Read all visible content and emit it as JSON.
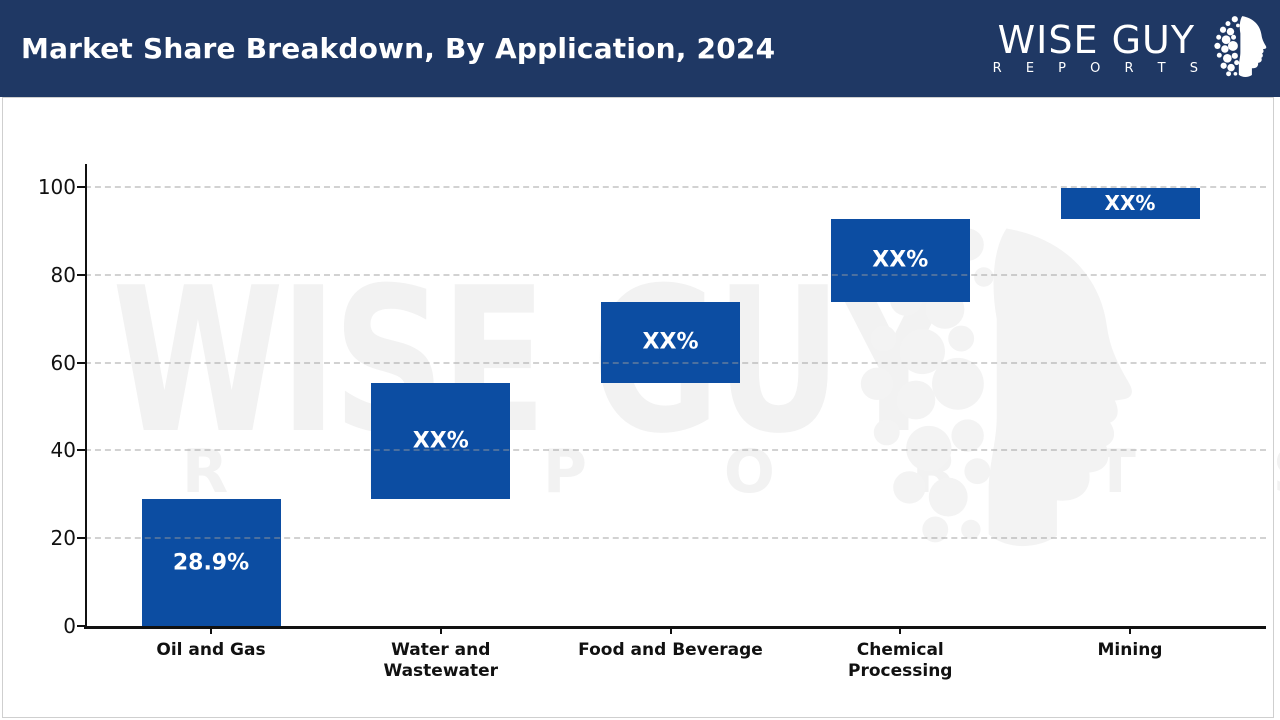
{
  "header": {
    "title": "Market Share Breakdown, By Application, 2024",
    "bg_color": "#1f3864",
    "logo": {
      "name": "WISE GUY",
      "tagline": "R E P O R T S",
      "icon": "dotted-head-profile-icon",
      "color": "#ffffff"
    }
  },
  "watermark": {
    "line1": "WISE GUY",
    "line2": "R E P O R T S",
    "icon": "dotted-head-profile-icon",
    "color": "#f2f2f2"
  },
  "chart_data": {
    "type": "bar",
    "subtype": "waterfall",
    "title": "Market Share Breakdown, By Application, 2024",
    "xlabel": "",
    "ylabel": "",
    "ylim": [
      0,
      105
    ],
    "y_ticks": [
      0,
      20,
      40,
      60,
      80,
      100
    ],
    "grid": "horizontal-dashed",
    "legend": "none",
    "bar_color": "#0c4da2",
    "bar_label_color": "#ffffff",
    "axis_color": "#111111",
    "categories": [
      "Oil and Gas",
      "Water and Wastewater",
      "Food and Beverage",
      "Chemical Processing",
      "Mining"
    ],
    "segments": [
      {
        "category": "Oil and Gas",
        "lines": [
          "Oil and Gas"
        ],
        "start": 0,
        "end": 28.9,
        "value_label": "28.9%"
      },
      {
        "category": "Water and Wastewater",
        "lines": [
          "Water and",
          "Wastewater"
        ],
        "start": 28.9,
        "end": 55.4,
        "value_label": "XX%"
      },
      {
        "category": "Food and Beverage",
        "lines": [
          "Food and Beverage"
        ],
        "start": 55.4,
        "end": 73.9,
        "value_label": "XX%"
      },
      {
        "category": "Chemical Processing",
        "lines": [
          "Chemical",
          "Processing"
        ],
        "start": 73.9,
        "end": 92.8,
        "value_label": "XX%"
      },
      {
        "category": "Mining",
        "lines": [
          "Mining"
        ],
        "start": 92.8,
        "end": 99.7,
        "value_label": "XX%"
      }
    ]
  }
}
